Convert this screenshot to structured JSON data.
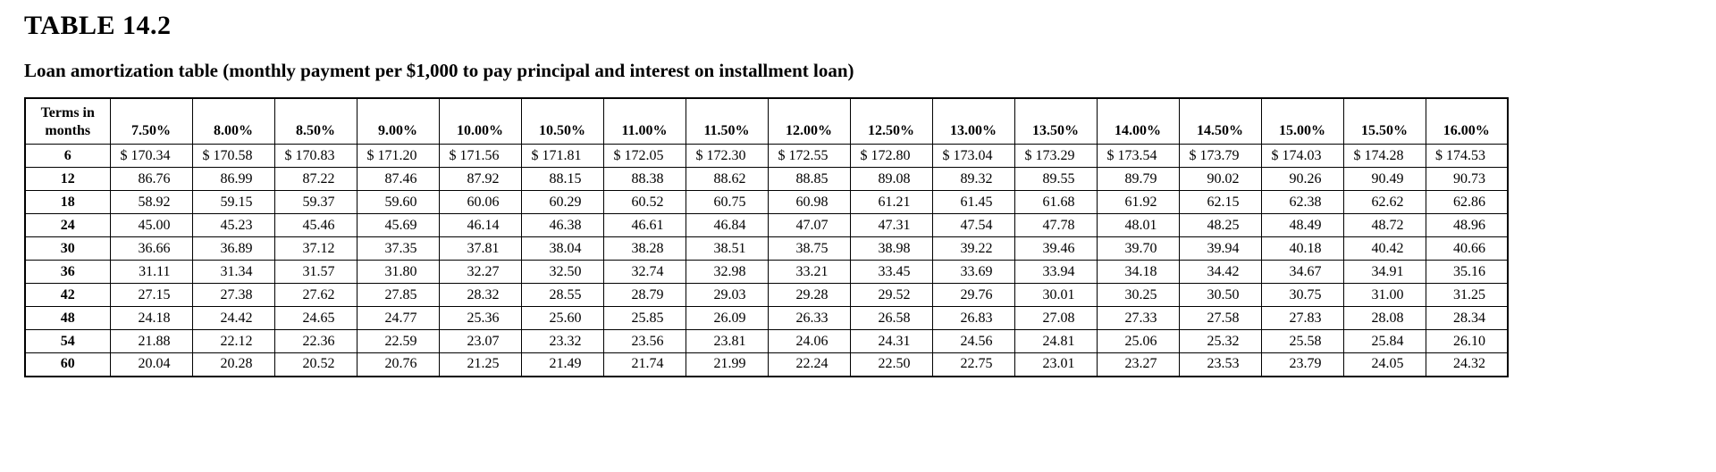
{
  "title": "TABLE 14.2",
  "subtitle": "Loan amortization table (monthly payment per $1,000 to pay principal and interest on installment loan)",
  "chart_data": {
    "type": "table",
    "corner_header": [
      "Terms in",
      "months"
    ],
    "columns": [
      "7.50%",
      "8.00%",
      "8.50%",
      "9.00%",
      "10.00%",
      "10.50%",
      "11.00%",
      "11.50%",
      "12.00%",
      "12.50%",
      "13.00%",
      "13.50%",
      "14.00%",
      "14.50%",
      "15.00%",
      "15.50%",
      "16.00%"
    ],
    "rows": [
      {
        "months": "6",
        "values": [
          "$ 170.34",
          "$ 170.58",
          "$ 170.83",
          "$ 171.20",
          "$ 171.56",
          "$ 171.81",
          "$ 172.05",
          "$ 172.30",
          "$ 172.55",
          "$ 172.80",
          "$ 173.04",
          "$ 173.29",
          "$ 173.54",
          "$ 173.79",
          "$ 174.03",
          "$ 174.28",
          "$ 174.53"
        ]
      },
      {
        "months": "12",
        "values": [
          "86.76",
          "86.99",
          "87.22",
          "87.46",
          "87.92",
          "88.15",
          "88.38",
          "88.62",
          "88.85",
          "89.08",
          "89.32",
          "89.55",
          "89.79",
          "90.02",
          "90.26",
          "90.49",
          "90.73"
        ]
      },
      {
        "months": "18",
        "values": [
          "58.92",
          "59.15",
          "59.37",
          "59.60",
          "60.06",
          "60.29",
          "60.52",
          "60.75",
          "60.98",
          "61.21",
          "61.45",
          "61.68",
          "61.92",
          "62.15",
          "62.38",
          "62.62",
          "62.86"
        ]
      },
      {
        "months": "24",
        "values": [
          "45.00",
          "45.23",
          "45.46",
          "45.69",
          "46.14",
          "46.38",
          "46.61",
          "46.84",
          "47.07",
          "47.31",
          "47.54",
          "47.78",
          "48.01",
          "48.25",
          "48.49",
          "48.72",
          "48.96"
        ]
      },
      {
        "months": "30",
        "values": [
          "36.66",
          "36.89",
          "37.12",
          "37.35",
          "37.81",
          "38.04",
          "38.28",
          "38.51",
          "38.75",
          "38.98",
          "39.22",
          "39.46",
          "39.70",
          "39.94",
          "40.18",
          "40.42",
          "40.66"
        ]
      },
      {
        "months": "36",
        "values": [
          "31.11",
          "31.34",
          "31.57",
          "31.80",
          "32.27",
          "32.50",
          "32.74",
          "32.98",
          "33.21",
          "33.45",
          "33.69",
          "33.94",
          "34.18",
          "34.42",
          "34.67",
          "34.91",
          "35.16"
        ]
      },
      {
        "months": "42",
        "values": [
          "27.15",
          "27.38",
          "27.62",
          "27.85",
          "28.32",
          "28.55",
          "28.79",
          "29.03",
          "29.28",
          "29.52",
          "29.76",
          "30.01",
          "30.25",
          "30.50",
          "30.75",
          "31.00",
          "31.25"
        ]
      },
      {
        "months": "48",
        "values": [
          "24.18",
          "24.42",
          "24.65",
          "24.77",
          "25.36",
          "25.60",
          "25.85",
          "26.09",
          "26.33",
          "26.58",
          "26.83",
          "27.08",
          "27.33",
          "27.58",
          "27.83",
          "28.08",
          "28.34"
        ]
      },
      {
        "months": "54",
        "values": [
          "21.88",
          "22.12",
          "22.36",
          "22.59",
          "23.07",
          "23.32",
          "23.56",
          "23.81",
          "24.06",
          "24.31",
          "24.56",
          "24.81",
          "25.06",
          "25.32",
          "25.58",
          "25.84",
          "26.10"
        ]
      },
      {
        "months": "60",
        "values": [
          "20.04",
          "20.28",
          "20.52",
          "20.76",
          "21.25",
          "21.49",
          "21.74",
          "21.99",
          "22.24",
          "22.50",
          "22.75",
          "23.01",
          "23.27",
          "23.53",
          "23.79",
          "24.05",
          "24.32"
        ]
      }
    ]
  }
}
